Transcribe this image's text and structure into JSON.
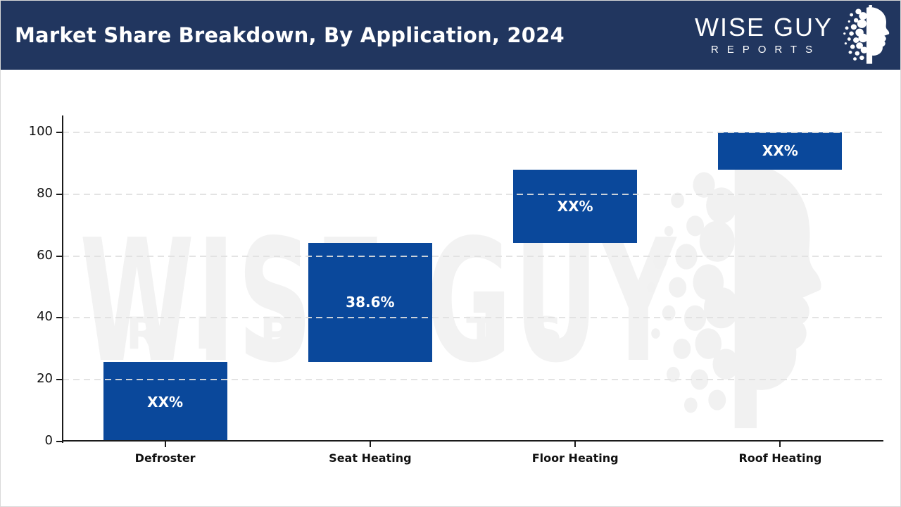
{
  "header": {
    "title": "Market Share Breakdown, By Application, 2024",
    "logo": {
      "line1": "WISE GUY",
      "line2": "REPORTS"
    },
    "bg_color": "#21365F"
  },
  "watermark": {
    "line1": "WISE GUY",
    "line2": "REPORTS"
  },
  "chart_data": {
    "type": "bar",
    "subtype": "waterfall",
    "title": "Market Share Breakdown, By Application, 2024",
    "categories": [
      "Defroster",
      "Seat Heating",
      "Floor Heating",
      "Roof Heating"
    ],
    "series": [
      {
        "name": "Market Share",
        "segments": [
          {
            "category": "Defroster",
            "start": 0,
            "end": 25.7,
            "label": "XX%"
          },
          {
            "category": "Seat Heating",
            "start": 25.7,
            "end": 64.3,
            "label": "38.6%",
            "value": 38.6
          },
          {
            "category": "Floor Heating",
            "start": 64.3,
            "end": 88.0,
            "label": "XX%"
          },
          {
            "category": "Roof Heating",
            "start": 88.0,
            "end": 100.0,
            "label": "XX%"
          }
        ]
      }
    ],
    "xlabel": "",
    "ylabel": "",
    "ylim": [
      0,
      105.5
    ],
    "yticks": [
      0,
      20,
      40,
      60,
      80,
      100
    ],
    "grid": "horizontal-dashed",
    "legend": "none",
    "bar_color": "#0A489B",
    "bar_label_color": "#ffffff",
    "bar_width_fraction": 0.151
  }
}
